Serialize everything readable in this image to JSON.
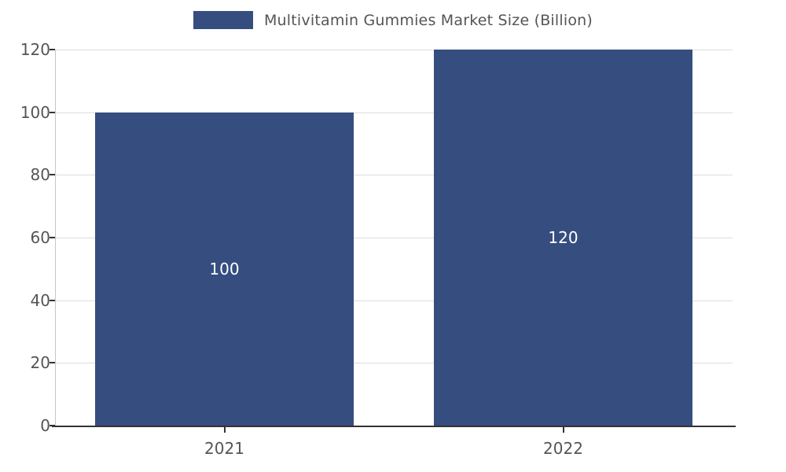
{
  "chart_data": {
    "type": "bar",
    "title": "Multivitamin Gummies Market Size (Billion)",
    "categories": [
      "2021",
      "2022"
    ],
    "values": [
      100,
      120
    ],
    "value_labels": [
      "100",
      "120"
    ],
    "xlabel": "",
    "ylabel": "",
    "ylim": [
      0,
      120
    ],
    "yticks": [
      0,
      20,
      40,
      60,
      80,
      100,
      120
    ],
    "grid": true,
    "legend_position": "top-center",
    "colors": {
      "bar": "#364d7f",
      "bar_value_text": "#ffffff",
      "tick_text": "#555555",
      "gridline": "#dddddd",
      "axis_line": "#333333",
      "background": "#ffffff"
    }
  }
}
